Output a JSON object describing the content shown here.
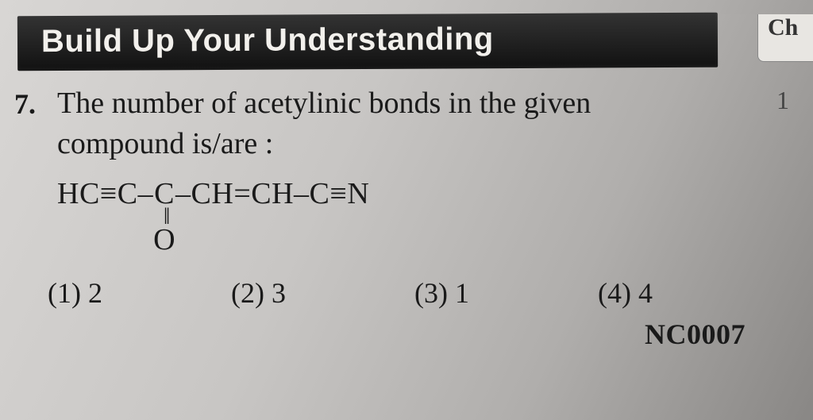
{
  "corner_hint": "Ch",
  "banner_title": "Build Up Your Understanding",
  "side_number": "1",
  "question": {
    "number": "7.",
    "text_line1": "The number of acetylinic bonds in the given",
    "text_line2": "compound is/are :"
  },
  "formula": {
    "left": "HC≡C–",
    "c": "C",
    "dbl_bond": "‖",
    "o": "O",
    "right": "–CH=CH–C≡N"
  },
  "options": {
    "o1": "(1) 2",
    "o2": "(2) 3",
    "o3": "(3) 1",
    "o4": "(4) 4"
  },
  "code": "NC0007"
}
